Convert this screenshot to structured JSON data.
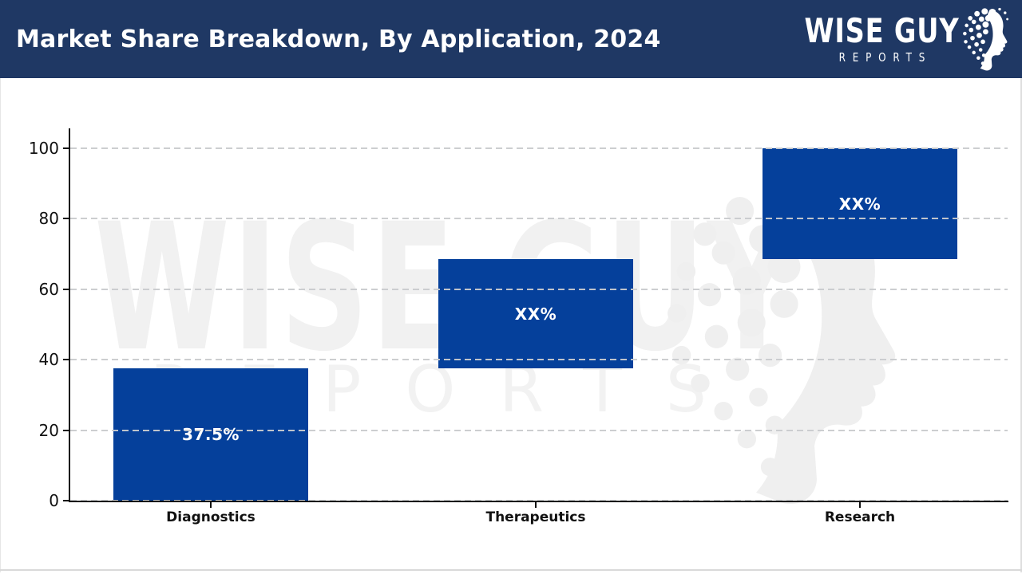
{
  "header": {
    "title": "Market Share Breakdown, By Application, 2024",
    "background": "#1f3864",
    "logo": {
      "line1": "WISE GUY",
      "line2": "REPORTS"
    }
  },
  "watermark": {
    "line1": "WISE GUY",
    "line2": "REPORTS"
  },
  "chart_data": {
    "type": "bar",
    "subtype": "floating-segment-breakdown",
    "title": "Market Share Breakdown, By Application, 2024",
    "categories": [
      "Diagnostics",
      "Therapeutics",
      "Research"
    ],
    "segments": [
      {
        "category": "Diagnostics",
        "start": 0,
        "end": 37.5,
        "label": "37.5%"
      },
      {
        "category": "Therapeutics",
        "start": 37.5,
        "end": 68.5,
        "label": "XX%"
      },
      {
        "category": "Research",
        "start": 68.5,
        "end": 100,
        "label": "XX%"
      }
    ],
    "yticks": [
      0,
      20,
      40,
      60,
      80,
      100
    ],
    "ylim": [
      0,
      105
    ],
    "xlabel": "",
    "ylabel": "",
    "grid": "dashed-horizontal",
    "legend": "none",
    "bar_color": "#05409b",
    "grid_color": "#cccccc",
    "axis_color": "#111111",
    "label_color": "#ffffff"
  }
}
